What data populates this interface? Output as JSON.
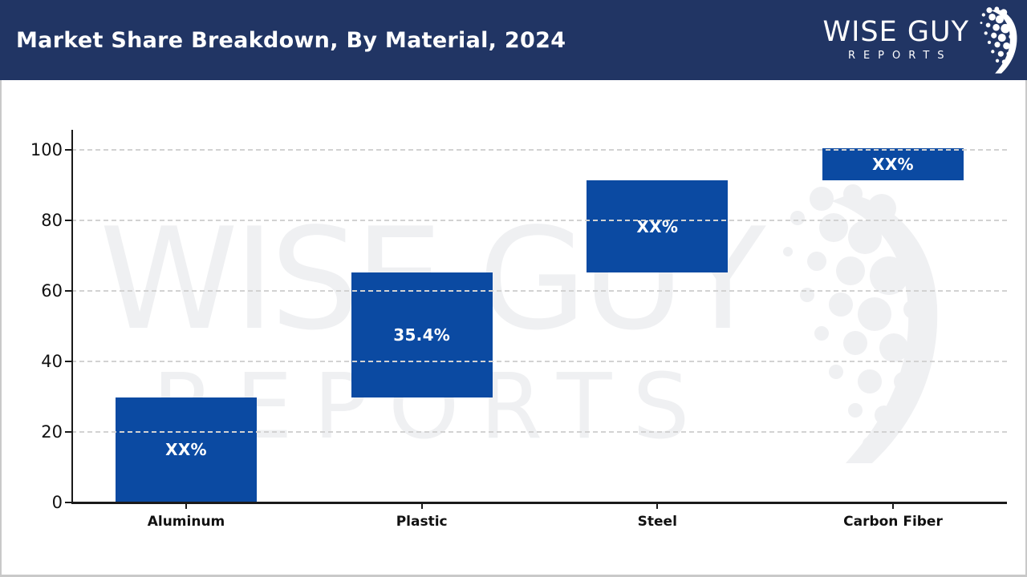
{
  "header": {
    "title": "Market Share Breakdown, By Material, 2024",
    "logo": {
      "line1": "WISE GUY",
      "line2": "REPORTS"
    }
  },
  "watermark": {
    "line1": "WISE GUY",
    "line2": "REPORTS"
  },
  "chart_data": {
    "type": "bar",
    "subtype": "waterfall",
    "title": "Market Share Breakdown, By Material, 2024",
    "categories": [
      "Aluminum",
      "Plastic",
      "Steel",
      "Carbon Fiber"
    ],
    "segments": [
      {
        "category": "Aluminum",
        "start": 0,
        "end": 29.7,
        "label": "XX%"
      },
      {
        "category": "Plastic",
        "start": 29.7,
        "end": 65.1,
        "label": "35.4%"
      },
      {
        "category": "Steel",
        "start": 65.1,
        "end": 91.2,
        "label": "XX%"
      },
      {
        "category": "Carbon Fiber",
        "start": 91.2,
        "end": 100.4,
        "label": "XX%"
      }
    ],
    "xlabel": "",
    "ylabel": "",
    "ylim": [
      0,
      105
    ],
    "yticks": [
      0,
      20,
      40,
      60,
      80,
      100
    ],
    "grid": true,
    "legend_position": "none",
    "bar_color": "#0b4aa2",
    "grid_color": "#d2d2d2"
  },
  "colors": {
    "header_bg": "#213564",
    "bar": "#0b4aa2",
    "text": "#111111",
    "watermark": "#eff0f2",
    "border": "#c9c9c9"
  }
}
